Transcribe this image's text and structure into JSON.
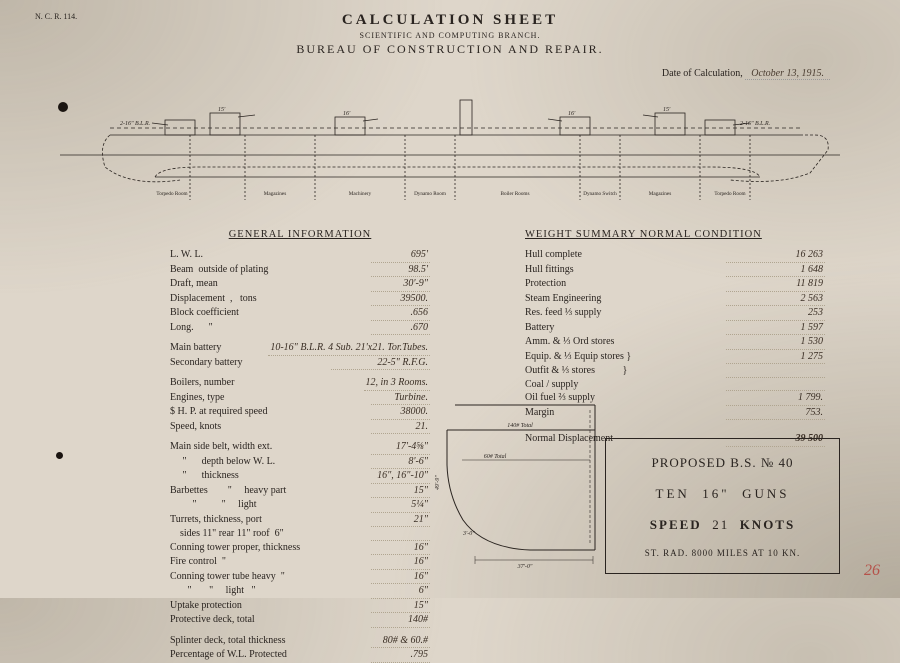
{
  "formno": "N. C. R. 114.",
  "header": {
    "t1": "CALCULATION SHEET",
    "t2": "SCIENTIFIC AND COMPUTING BRANCH.",
    "t3": "BUREAU OF CONSTRUCTION AND REPAIR."
  },
  "date": {
    "label": "Date of Calculation,",
    "value": "October 13, 1915."
  },
  "profile": {
    "compartments": [
      "Torpedo Room",
      "Magazines",
      "Machinery",
      "Dynamo Room",
      "Boiler Rooms",
      "Dynamo Switch",
      "Magazines",
      "Torpedo Room"
    ],
    "turret_label_outer": "2-16\" B.L.R.",
    "turret_mid_label": "15'",
    "turret_inner_label": "16'"
  },
  "general": {
    "head": "GENERAL   INFORMATION",
    "rows1": [
      {
        "l": "L. W. L.",
        "v": "695'"
      },
      {
        "l": "Beam  outside of plating",
        "v": "98.5'"
      },
      {
        "l": "Draft, mean",
        "v": "30'-9\""
      },
      {
        "l": "Displacement  ,   tons",
        "v": "39500."
      },
      {
        "l": "Block coefficient",
        "v": ".656"
      },
      {
        "l": "Long.      \"",
        "v": ".670"
      }
    ],
    "rows2": [
      {
        "l": "Main battery",
        "v": "10-16\" B.L.R.  4 Sub. 21'x21. Tor.Tubes."
      },
      {
        "l": "Secondary battery",
        "v": "22-5\" R.F.G."
      }
    ],
    "rows3": [
      {
        "l": "Boilers, number",
        "v": "12, in 3 Rooms."
      },
      {
        "l": "Engines, type",
        "v": "Turbine."
      },
      {
        "l": "$ H. P. at required speed",
        "v": "38000."
      },
      {
        "l": "Speed, knots",
        "v": "21."
      }
    ],
    "rows4": [
      {
        "l": "Main side belt, width ext.",
        "v": "17'-4⅝\""
      },
      {
        "l": "     \"      depth below W. L.",
        "v": "8'-6\""
      },
      {
        "l": "     \"      thickness",
        "v": "16\", 16\"-10\""
      },
      {
        "l": "Barbettes        \"     heavy part",
        "v": "15\""
      },
      {
        "l": "         \"          \"     light",
        "v": "5¼\""
      },
      {
        "l": "Turrets, thickness, port",
        "v": "21\""
      },
      {
        "l": "    sides 11\" rear 11\" roof  6\"",
        "v": ""
      },
      {
        "l": "Conning tower proper, thickness",
        "v": "16\""
      },
      {
        "l": "Fire control  \"",
        "v": "16\""
      },
      {
        "l": "Conning tower tube heavy  \"",
        "v": "16\""
      },
      {
        "l": "       \"       \"     light   \"",
        "v": "6\""
      },
      {
        "l": "Uptake protection",
        "v": "15\""
      },
      {
        "l": "Protective deck, total",
        "v": "140#"
      }
    ],
    "rows5": [
      {
        "l": "Splinter deck, total thickness",
        "v": "80# & 60.#"
      },
      {
        "l": "Percentage of W.L. Protected",
        "v": ".795"
      }
    ]
  },
  "weight": {
    "head": "WEIGHT SUMMARY  NORMAL CONDITION",
    "rows": [
      {
        "l": "Hull complete",
        "v": "16 263"
      },
      {
        "l": "Hull fittings",
        "v": "1 648"
      },
      {
        "l": "Protection",
        "v": "11 819"
      },
      {
        "l": "Steam Engineering",
        "v": "2 563"
      },
      {
        "l": "Res. feed ⅓ supply",
        "v": "253"
      },
      {
        "l": "Battery",
        "v": "1 597"
      },
      {
        "l": "Amm. & ⅓ Ord stores",
        "v": "1 530"
      },
      {
        "l": "Equip. & ⅓ Equip stores }",
        "v": "1 275"
      },
      {
        "l": "Outfit & ⅓ stores           }",
        "v": ""
      },
      {
        "l": "Coal / supply",
        "v": ""
      },
      {
        "l": "Oil fuel ⅔ supply",
        "v": "1 799."
      },
      {
        "l": "Margin",
        "v": "753."
      }
    ],
    "total": {
      "l": "Normal Displacement",
      "v": "39 500"
    }
  },
  "section": {
    "beam": "37'-0\"",
    "top": "140# Total",
    "side": "60# Total",
    "bot": "3'-0\"",
    "depth": "49'-9\""
  },
  "titlebox": {
    "l1": "PROPOSED  B.S.  № 40",
    "l2a": "TEN",
    "l2b": "16\"",
    "l2c": "GUNS",
    "l3a": "SPEED",
    "l3b": "21",
    "l3c": "KNOTS",
    "l4": "ST. RAD.  8000  MILES AT 10 KN."
  },
  "pgno": "26",
  "colors": {
    "ink": "#2a2420",
    "hand": "#3a2e24",
    "paper": "#ded6ca",
    "red": "#b5524a"
  }
}
